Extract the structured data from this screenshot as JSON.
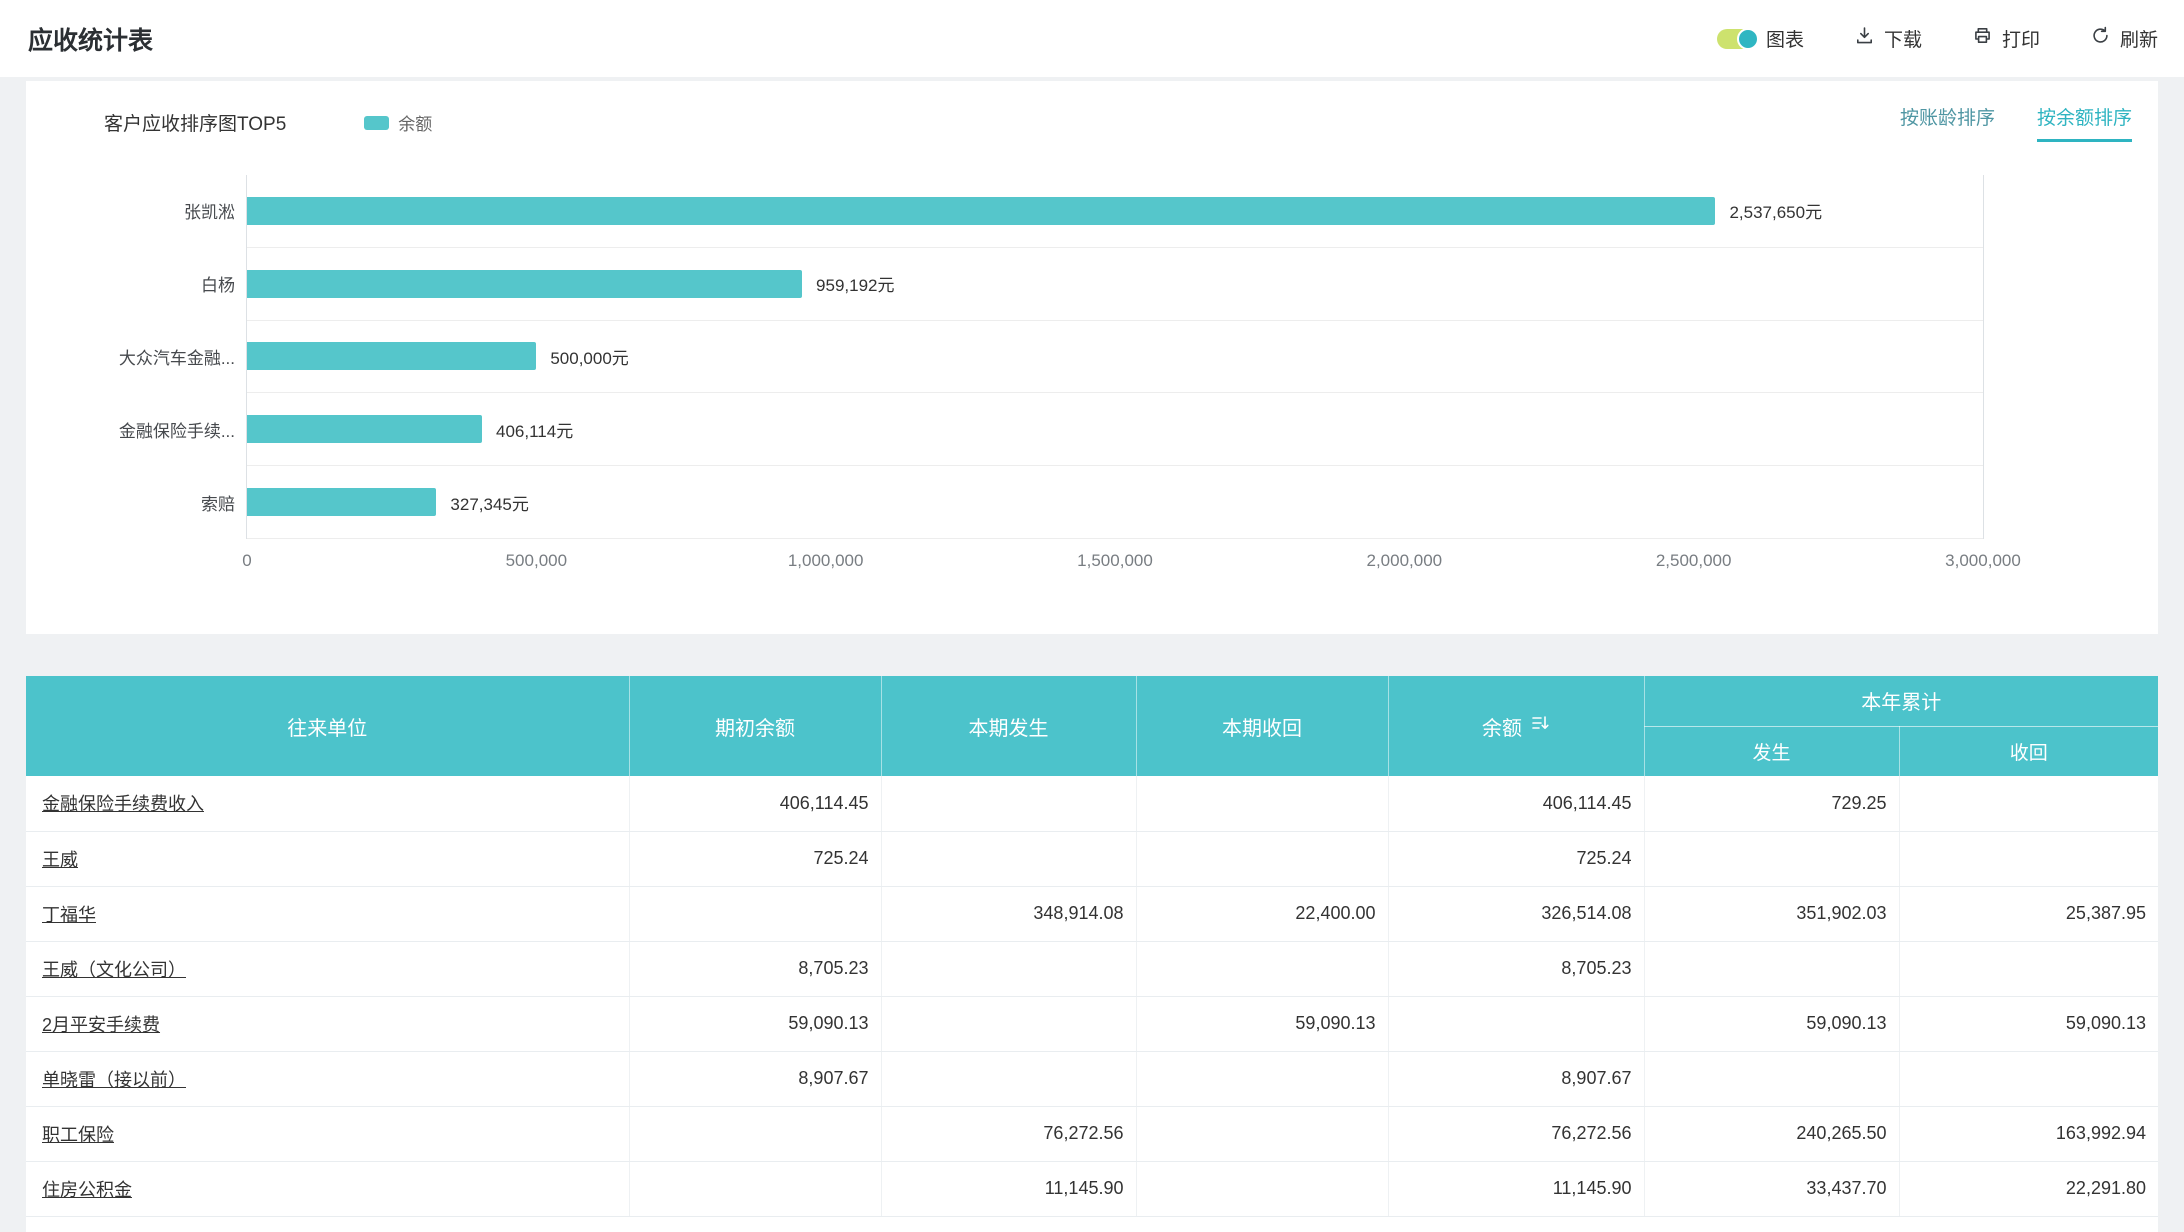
{
  "page": {
    "title": "应收统计表"
  },
  "toolbar": {
    "chart_toggle_label": "图表",
    "download_label": "下载",
    "print_label": "打印",
    "refresh_label": "刷新"
  },
  "chart_panel": {
    "title": "客户应收排序图TOP5",
    "legend_label": "余额",
    "sort_tab_age": "按账龄排序",
    "sort_tab_balance": "按余额排序"
  },
  "chart_data": {
    "type": "bar",
    "orientation": "horizontal",
    "title": "客户应收排序图TOP5",
    "series_name": "余额",
    "categories": [
      "张凯淞",
      "白杨",
      "大众汽车金融...",
      "金融保险手续...",
      "索赔"
    ],
    "values": [
      2537650,
      959192,
      500000,
      406114,
      327345
    ],
    "value_labels": [
      "2,537,650元",
      "959,192元",
      "500,000元",
      "406,114元",
      "327,345元"
    ],
    "xlim": [
      0,
      3000000
    ],
    "x_ticks": [
      "0",
      "500,000",
      "1,000,000",
      "1,500,000",
      "2,000,000",
      "2,500,000",
      "3,000,000"
    ],
    "grid": "row-separators",
    "legend_position": "top-left",
    "bar_color": "#55c6cb"
  },
  "table": {
    "headers": {
      "unit": "往来单位",
      "opening_balance": "期初余额",
      "current_occurred": "本期发生",
      "current_recovered": "本期收回",
      "balance": "余额",
      "year_total": "本年累计",
      "year_occurred": "发生",
      "year_recovered": "收回"
    },
    "rows": [
      {
        "unit": "金融保险手续费收入",
        "opening": "406,114.45",
        "occurred": "",
        "recovered": "",
        "balance": "406,114.45",
        "y_occurred": "729.25",
        "y_recovered": ""
      },
      {
        "unit": "王威",
        "opening": "725.24",
        "occurred": "",
        "recovered": "",
        "balance": "725.24",
        "y_occurred": "",
        "y_recovered": ""
      },
      {
        "unit": "丁福华",
        "opening": "",
        "occurred": "348,914.08",
        "recovered": "22,400.00",
        "balance": "326,514.08",
        "y_occurred": "351,902.03",
        "y_recovered": "25,387.95"
      },
      {
        "unit": "王威（文化公司）",
        "opening": "8,705.23",
        "occurred": "",
        "recovered": "",
        "balance": "8,705.23",
        "y_occurred": "",
        "y_recovered": ""
      },
      {
        "unit": "2月平安手续费",
        "opening": "59,090.13",
        "occurred": "",
        "recovered": "59,090.13",
        "balance": "",
        "y_occurred": "59,090.13",
        "y_recovered": "59,090.13"
      },
      {
        "unit": "单晓雷（接以前）",
        "opening": "8,907.67",
        "occurred": "",
        "recovered": "",
        "balance": "8,907.67",
        "y_occurred": "",
        "y_recovered": ""
      },
      {
        "unit": "职工保险",
        "opening": "",
        "occurred": "76,272.56",
        "recovered": "",
        "balance": "76,272.56",
        "y_occurred": "240,265.50",
        "y_recovered": "163,992.94"
      },
      {
        "unit": "住房公积金",
        "opening": "",
        "occurred": "11,145.90",
        "recovered": "",
        "balance": "11,145.90",
        "y_occurred": "33,437.70",
        "y_recovered": "22,291.80"
      }
    ]
  },
  "colors": {
    "accent": "#4cc3cb",
    "bar": "#55c6cb",
    "table_header_bg": "#4cc3cb",
    "toggle_track": "#cde26e",
    "toggle_knob": "#2fb6c2"
  },
  "icons": {
    "chart_toggle": "toggle-on",
    "download": "download-icon",
    "print": "print-icon",
    "refresh": "refresh-icon",
    "balance_sort": "sort-descending-icon"
  }
}
